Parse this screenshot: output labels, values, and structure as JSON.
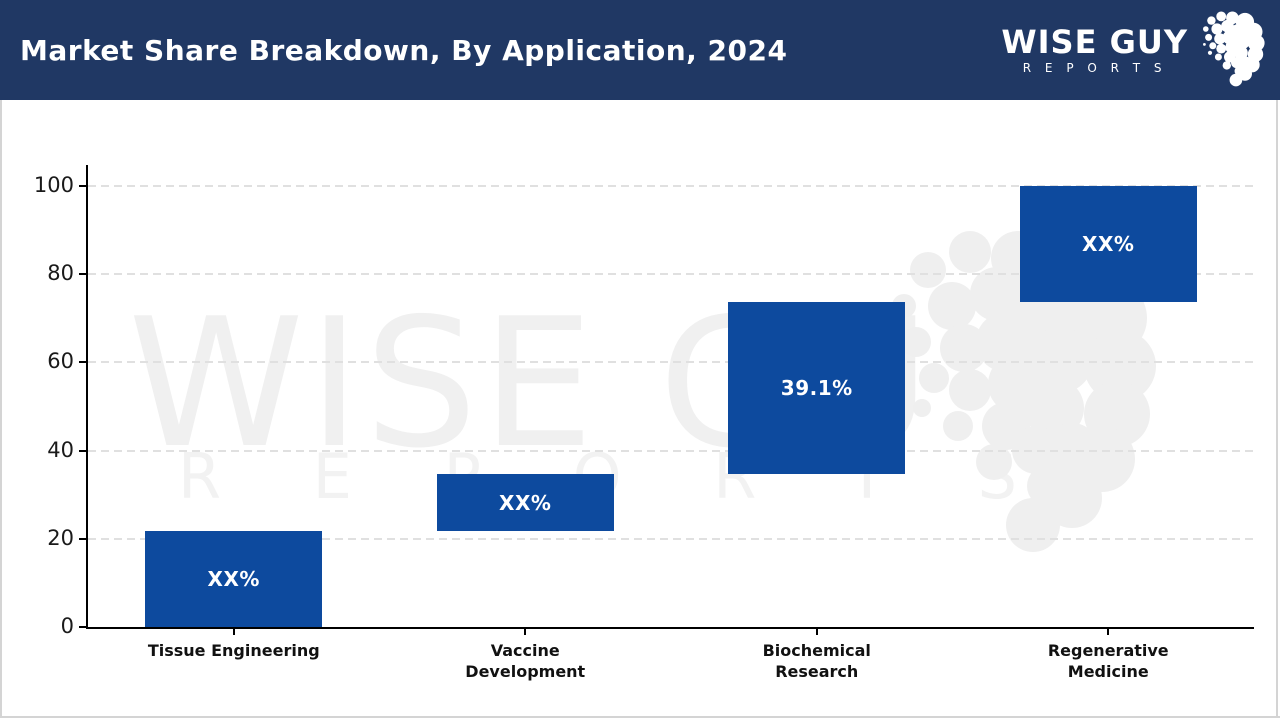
{
  "header": {
    "title": "Market Share Breakdown, By Application, 2024",
    "logo": {
      "name": "WISE GUY",
      "tagline": "R E P O R T S"
    }
  },
  "watermark": {
    "line1": "WISE GU",
    "line2": "R E P O R T S"
  },
  "chart_data": {
    "type": "waterfall",
    "title": "Market Share Breakdown, By Application, 2024",
    "categories": [
      "Tissue Engineering",
      "Vaccine Development",
      "Biochemical Research",
      "Regenerative Medicine"
    ],
    "categories_lines": [
      [
        "Tissue Engineering"
      ],
      [
        "Vaccine",
        "Development"
      ],
      [
        "Biochemical",
        "Research"
      ],
      [
        "Regenerative",
        "Medicine"
      ]
    ],
    "segments": [
      {
        "category": "Tissue Engineering",
        "start": 0,
        "end": 21.7,
        "value": 21.7,
        "label": "XX%"
      },
      {
        "category": "Vaccine Development",
        "start": 21.8,
        "end": 34.6,
        "value": 12.8,
        "label": "XX%"
      },
      {
        "category": "Biochemical Research",
        "start": 34.6,
        "end": 73.7,
        "value": 39.1,
        "label": "39.1%"
      },
      {
        "category": "Regenerative Medicine",
        "start": 73.7,
        "end": 100,
        "value": 26.3,
        "label": "XX%"
      }
    ],
    "xlabel": "",
    "ylabel": "",
    "ylim": [
      0,
      104.8
    ],
    "yticks": [
      0,
      20,
      40,
      60,
      80,
      100
    ],
    "grid": true,
    "grid_axis": "y",
    "grid_style": "dashed",
    "legend": null,
    "bar_color": "#0d4a9e"
  },
  "colors": {
    "header_bg": "#203864",
    "bar": "#0d4a9e",
    "bar_label": "#ffffff",
    "grid": "#e0e0e0",
    "axis": "#000000",
    "tick_label": "#1a1a1a",
    "watermark": "#f0f0f0",
    "border": "#d4d4d4"
  }
}
